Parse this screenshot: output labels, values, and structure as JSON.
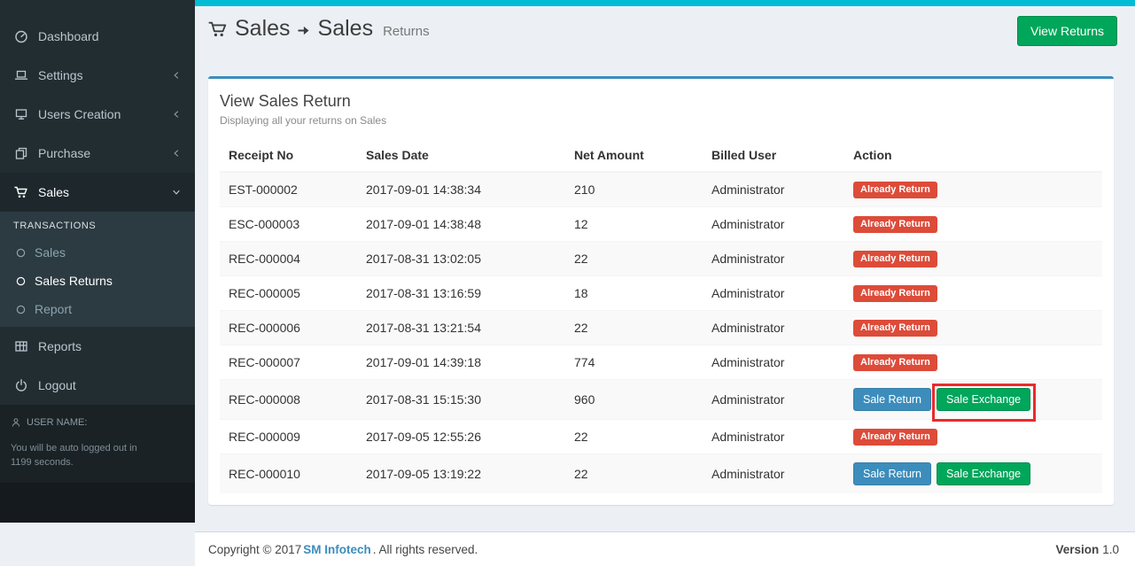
{
  "sidebar": {
    "items": [
      {
        "label": "Dashboard"
      },
      {
        "label": "Settings"
      },
      {
        "label": "Users Creation"
      },
      {
        "label": "Purchase"
      },
      {
        "label": "Sales"
      }
    ],
    "section": {
      "header": "TRANSACTIONS",
      "items": [
        {
          "label": "Sales"
        },
        {
          "label": "Sales Returns"
        },
        {
          "label": "Report"
        }
      ]
    },
    "items_bottom": [
      {
        "label": "Reports"
      },
      {
        "label": "Logout"
      }
    ],
    "user_label": "USER NAME:",
    "auto_logout_note": "You will be auto logged out in 1199 seconds."
  },
  "header": {
    "title": "Sales",
    "arrow_to": "Sales",
    "subtitle": "Returns",
    "action_button": "View Returns"
  },
  "card": {
    "title": "View Sales Return",
    "subtitle": "Displaying all your returns on Sales",
    "table": {
      "columns": [
        "Receipt No",
        "Sales Date",
        "Net Amount",
        "Billed User",
        "Action"
      ],
      "action_types": {
        "already-return": {
          "label": "Already Return",
          "class": "badge-already",
          "tag": "span"
        },
        "sale-return": {
          "label": "Sale Return",
          "class": "btn btn-sale-return",
          "tag": "button"
        },
        "sale-exchange": {
          "label": "Sale Exchange",
          "class": "btn btn-sale-exchange",
          "tag": "button"
        }
      },
      "rows": [
        {
          "receipt_no": "EST-000002",
          "sales_date": "2017-09-01 14:38:34",
          "net_amount": "210",
          "billed_user": "Administrator",
          "actions": [
            {
              "type": "already-return"
            }
          ]
        },
        {
          "receipt_no": "ESC-000003",
          "sales_date": "2017-09-01 14:38:48",
          "net_amount": "12",
          "billed_user": "Administrator",
          "actions": [
            {
              "type": "already-return"
            }
          ]
        },
        {
          "receipt_no": "REC-000004",
          "sales_date": "2017-08-31 13:02:05",
          "net_amount": "22",
          "billed_user": "Administrator",
          "actions": [
            {
              "type": "already-return"
            }
          ]
        },
        {
          "receipt_no": "REC-000005",
          "sales_date": "2017-08-31 13:16:59",
          "net_amount": "18",
          "billed_user": "Administrator",
          "actions": [
            {
              "type": "already-return"
            }
          ]
        },
        {
          "receipt_no": "REC-000006",
          "sales_date": "2017-08-31 13:21:54",
          "net_amount": "22",
          "billed_user": "Administrator",
          "actions": [
            {
              "type": "already-return"
            }
          ]
        },
        {
          "receipt_no": "REC-000007",
          "sales_date": "2017-09-01 14:39:18",
          "net_amount": "774",
          "billed_user": "Administrator",
          "actions": [
            {
              "type": "already-return"
            }
          ]
        },
        {
          "receipt_no": "REC-000008",
          "sales_date": "2017-08-31 15:15:30",
          "net_amount": "960",
          "billed_user": "Administrator",
          "actions": [
            {
              "type": "sale-return"
            },
            {
              "type": "sale-exchange",
              "highlighted": true
            }
          ]
        },
        {
          "receipt_no": "REC-000009",
          "sales_date": "2017-09-05 12:55:26",
          "net_amount": "22",
          "billed_user": "Administrator",
          "actions": [
            {
              "type": "already-return"
            }
          ]
        },
        {
          "receipt_no": "REC-000010",
          "sales_date": "2017-09-05 13:19:22",
          "net_amount": "22",
          "billed_user": "Administrator",
          "actions": [
            {
              "type": "sale-return"
            },
            {
              "type": "sale-exchange"
            }
          ]
        }
      ]
    }
  },
  "footer": {
    "copyright_prefix": "Copyright © 2017",
    "brand": "SM Infotech",
    "copyright_suffix": ". All rights reserved.",
    "version_label": "Version",
    "version_value": "1.0"
  },
  "colors": {
    "accent_teal": "#00bcd4",
    "primary_blue": "#3c8dbc",
    "success_green": "#00a65a",
    "danger_red": "#dd4b39",
    "annotation_red": "#e92b2b",
    "sidebar_dark": "#222d32"
  }
}
